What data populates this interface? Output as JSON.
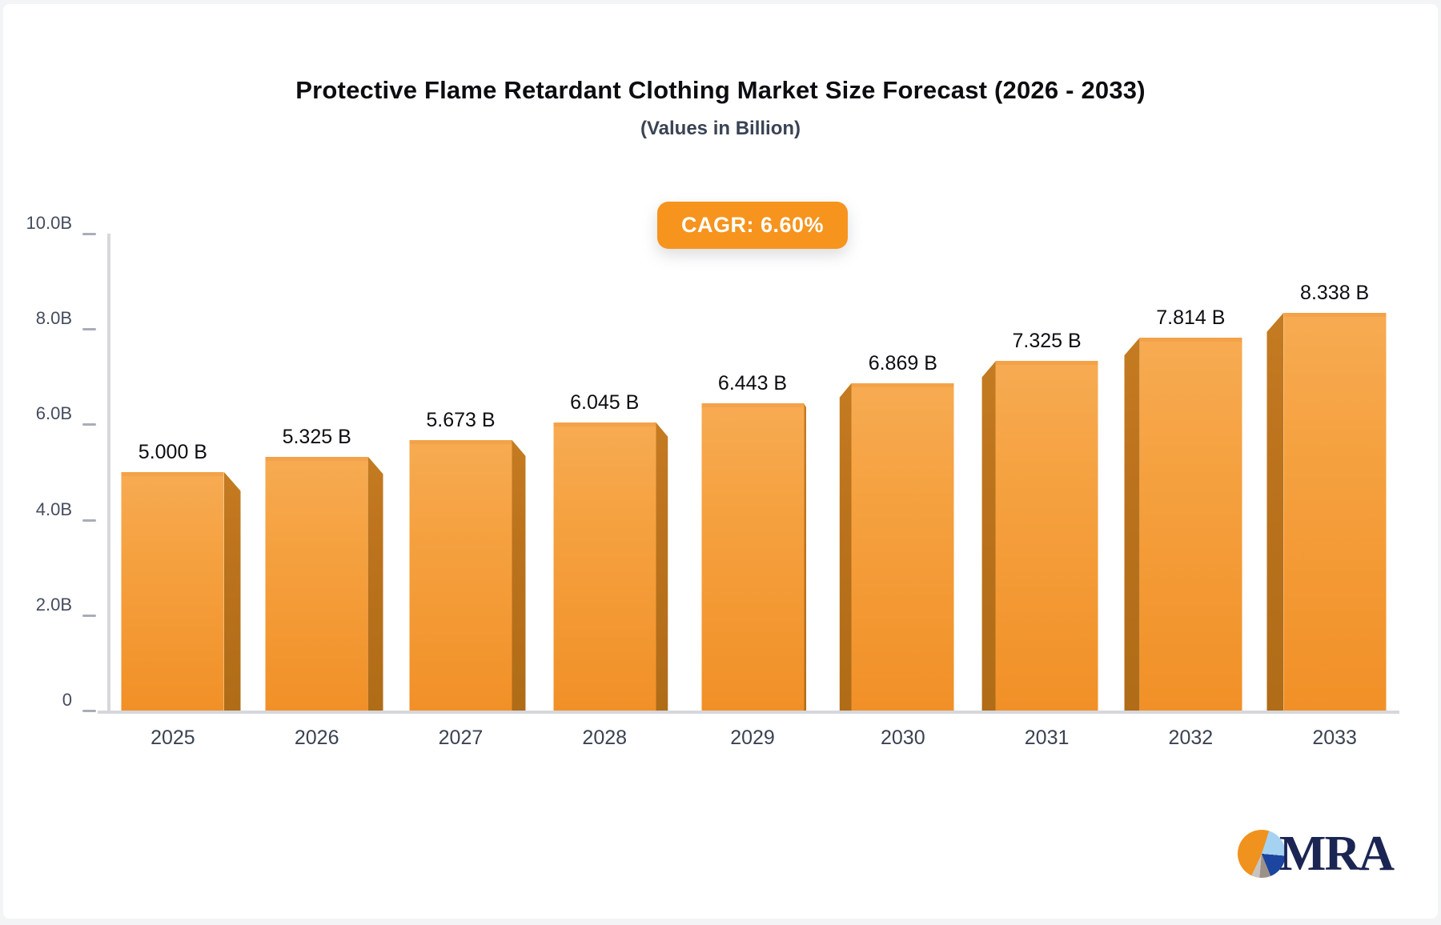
{
  "header": {
    "title": "Protective Flame Retardant Clothing Market Size Forecast (2026 - 2033)",
    "subtitle": "(Values in Billion)"
  },
  "badge": {
    "text": "CAGR: 6.60%"
  },
  "chart_data": {
    "type": "bar",
    "title": "Protective Flame Retardant Clothing Market Size Forecast (2026 - 2033)",
    "subtitle": "(Values in Billion)",
    "cagr": "6.60%",
    "unit": "Billion",
    "categories": [
      "2025",
      "2026",
      "2027",
      "2028",
      "2029",
      "2030",
      "2031",
      "2032",
      "2033"
    ],
    "values": [
      5.0,
      5.325,
      5.673,
      6.045,
      6.443,
      6.869,
      7.325,
      7.814,
      8.338
    ],
    "value_labels": [
      "5.000 B",
      "5.325 B",
      "5.673 B",
      "6.045 B",
      "6.443 B",
      "6.869 B",
      "7.325 B",
      "7.814 B",
      "8.338 B"
    ],
    "xlabel": "",
    "ylabel": "",
    "ylim": [
      0,
      10
    ],
    "y_ticks": [
      {
        "label": "10.0B",
        "value": 10
      },
      {
        "label": "8.0B",
        "value": 8
      },
      {
        "label": "6.0B",
        "value": 6
      },
      {
        "label": "4.0B",
        "value": 4
      },
      {
        "label": "2.0B",
        "value": 2
      },
      {
        "label": "0",
        "value": 0
      }
    ],
    "grid": false,
    "legend_position": "none"
  },
  "logo": {
    "text": "MRA"
  },
  "colors": {
    "accent": "#F6941E",
    "bar_top": "#F7AB52",
    "bar_bottom": "#F19027",
    "bar_side": "#BB721C",
    "axis": "#D5D7DC",
    "tick": "#A8ADB8",
    "text_axis": "#454C5E",
    "logo_navy": "#1B2553",
    "logo_orange": "#F0921E",
    "logo_lightblue": "#A6D2F2",
    "logo_blue": "#1C45A0"
  }
}
